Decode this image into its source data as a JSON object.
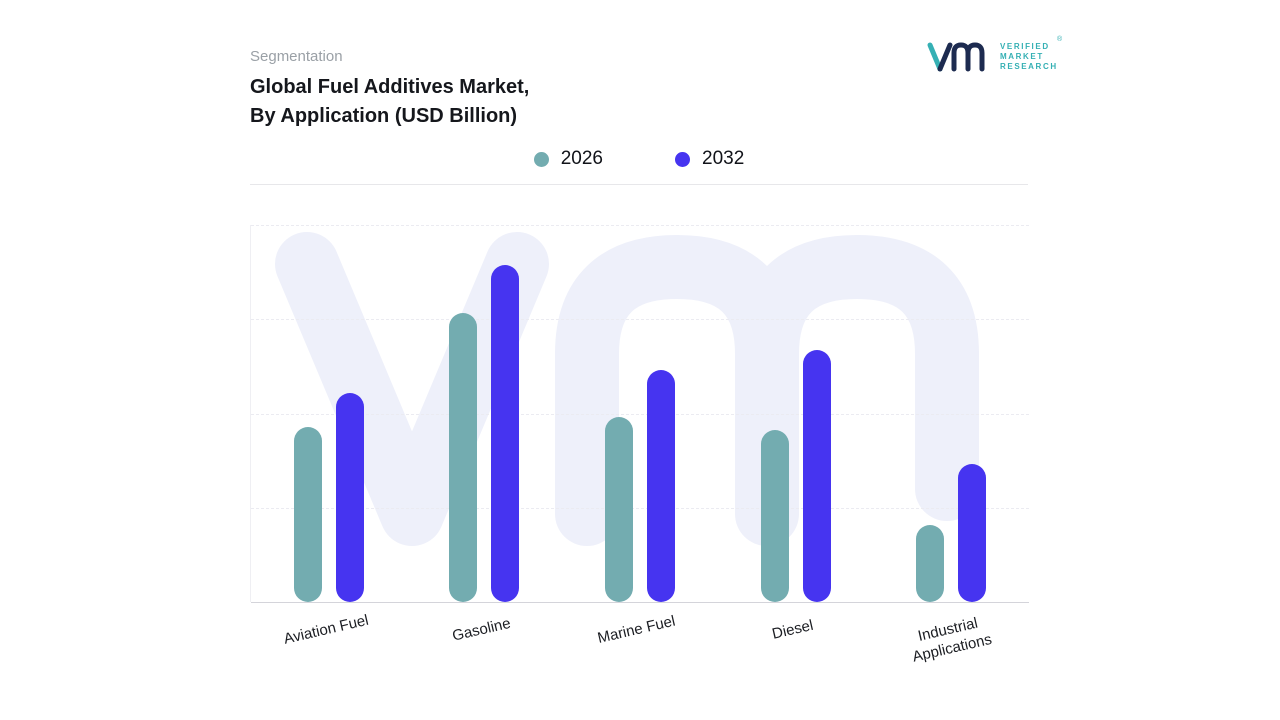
{
  "header": {
    "eyebrow": "Segmentation",
    "title_line1": "Global Fuel Additives Market,",
    "title_line2_bold": "By Application",
    "title_line2_unit": "(USD Billion)"
  },
  "logo": {
    "lines": {
      "0": "VERIFIED",
      "1": "MARKET",
      "2": "RESEARCH"
    },
    "registered": "®"
  },
  "legend": [
    {
      "label": "2026",
      "color": "#73acb0"
    },
    {
      "label": "2032",
      "color": "#4634f0"
    }
  ],
  "colors": {
    "series_2026": "#73acb0",
    "series_2032": "#4634f0",
    "watermark": "#eef0fa",
    "accent_teal": "#35b0b4",
    "navy": "#1d2b50"
  },
  "chart_data": {
    "type": "bar",
    "title": "Global Fuel Additives Market, By Application (USD Billion)",
    "categories": [
      "Aviation Fuel",
      "Gasoline",
      "Marine Fuel",
      "Diesel",
      "Industrial Applications"
    ],
    "series": [
      {
        "name": "2026",
        "color": "#73acb0",
        "values": [
          52,
          86,
          55,
          51,
          23
        ]
      },
      {
        "name": "2032",
        "color": "#4634f0",
        "values": [
          62,
          100,
          69,
          75,
          41
        ]
      }
    ],
    "xlabel": "",
    "ylabel": "",
    "ylim": [
      0,
      112
    ],
    "grid": "horizontal-dashed",
    "legend_position": "top-center",
    "bar_shape": "rounded-pill",
    "value_axis_labels_visible": false
  }
}
